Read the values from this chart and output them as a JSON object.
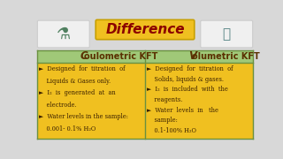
{
  "title": "Difference",
  "title_bg": "#F0C020",
  "title_color": "#8B0000",
  "title_fontsize": 11,
  "header_bg": "#A0C878",
  "header_border": "#6A9040",
  "col1_header_big": "C",
  "col1_header_rest": "oulometric KFT",
  "col2_header_big": "V",
  "col2_header_rest": "olumetric KFT",
  "col_header_color": "#5A3000",
  "col_header_fontsize_big": 8.5,
  "col_header_fontsize_rest": 7,
  "body_bg": "#F0C020",
  "body_text_color": "#3A2000",
  "body_fontsize": 4.8,
  "col1_lines": [
    "►  Designed  for  titration  of",
    "    Liquids & Gases only.",
    "►  I₂  is  generated  at  an",
    "    electrode.",
    "►  Water levels in the sample:",
    "    0.001- 0.1% H₂O"
  ],
  "col2_lines": [
    "►  Designed  for  titration  of",
    "    Solids, liquids & gases.",
    "►  I₂  is  included  with  the",
    "    reagents.",
    "►  Water  levels  in   the",
    "    sample:",
    "    0.1-100% H₂O"
  ],
  "outer_bg": "#D8D8D8",
  "divider_color": "#6A9040",
  "table_border_color": "#6A9040",
  "img_box_color": "#CCCCCC",
  "img_box_fill": "#F0F0F0"
}
